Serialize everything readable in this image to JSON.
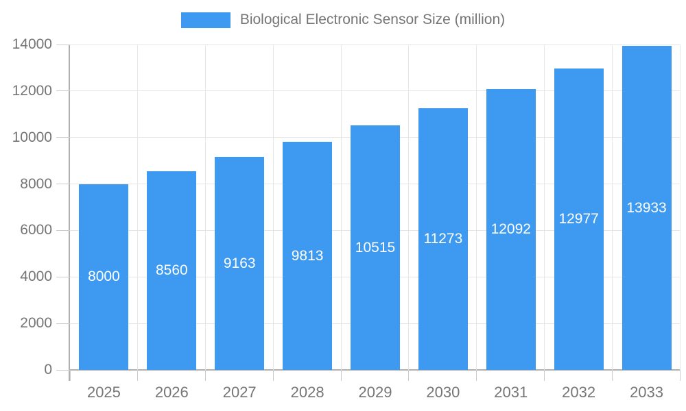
{
  "chart_data": {
    "type": "bar",
    "legend": "Biological Electronic Sensor Size (million)",
    "categories": [
      "2025",
      "2026",
      "2027",
      "2028",
      "2029",
      "2030",
      "2031",
      "2032",
      "2033"
    ],
    "values": [
      8000,
      8560,
      9163,
      9813,
      10515,
      11273,
      12092,
      12977,
      13933
    ],
    "xlabel": "",
    "ylabel": "",
    "ylim": [
      0,
      14000
    ],
    "ytick_step": 2000,
    "grid": true,
    "legend_position": "top-center",
    "bar_color": "#3d9af0",
    "bar_label_color": "#ffffff",
    "axis_text_color": "#757575",
    "gridline_color": "#e6e6e6",
    "tick_color": "#cccccc",
    "axis_line_color": "#b0b0b0",
    "background_color": "#ffffff"
  }
}
